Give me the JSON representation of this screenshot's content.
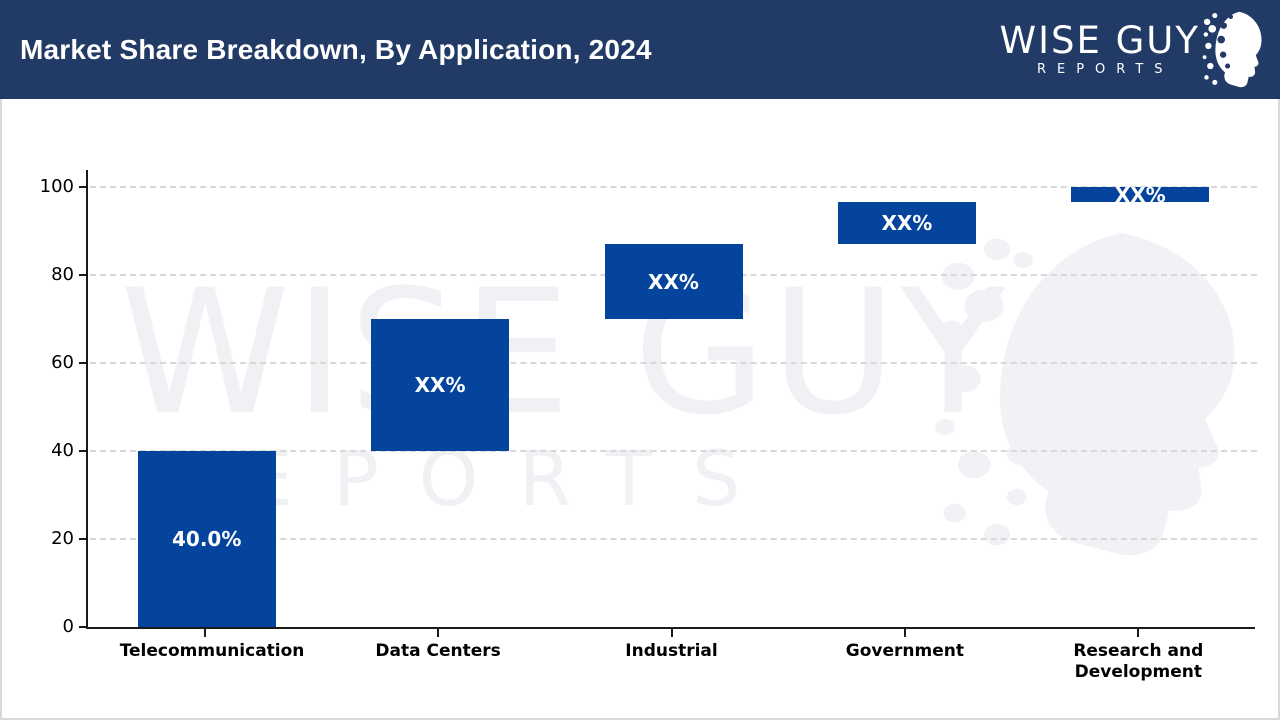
{
  "header": {
    "title": "Market Share Breakdown, By Application, 2024",
    "logo": {
      "line1": "WISE GUY",
      "line2": "REPORTS"
    }
  },
  "watermark": {
    "line1": "WISE GUY",
    "line2": "REPORTS"
  },
  "chart_data": {
    "type": "bar",
    "subtype": "waterfall",
    "title": "Market Share Breakdown, By Application, 2024",
    "categories": [
      "Telecommunication",
      "Data Centers",
      "Industrial",
      "Government",
      "Research and Development"
    ],
    "segment_start": [
      0,
      40,
      70,
      87,
      96.5
    ],
    "values": [
      40,
      30,
      17,
      9.5,
      3.5
    ],
    "bar_labels": [
      "40.0%",
      "XX%",
      "XX%",
      "XX%",
      "XX%"
    ],
    "xlabel": "",
    "ylabel": "",
    "ylim": [
      0,
      100
    ],
    "yticks": [
      0,
      20,
      40,
      60,
      80,
      100
    ],
    "grid": "horizontal-dashed",
    "legend": "none",
    "bar_color": "#04449c",
    "label_color": "#ffffff"
  },
  "colors": {
    "header_bg": "#213a66",
    "bar_blue": "#04449c",
    "grid_gray": "#d8d8d8",
    "axis_black": "#1a1a1a",
    "watermark_gray": "#f0f1f4",
    "content_border": "#d9d9d9"
  }
}
